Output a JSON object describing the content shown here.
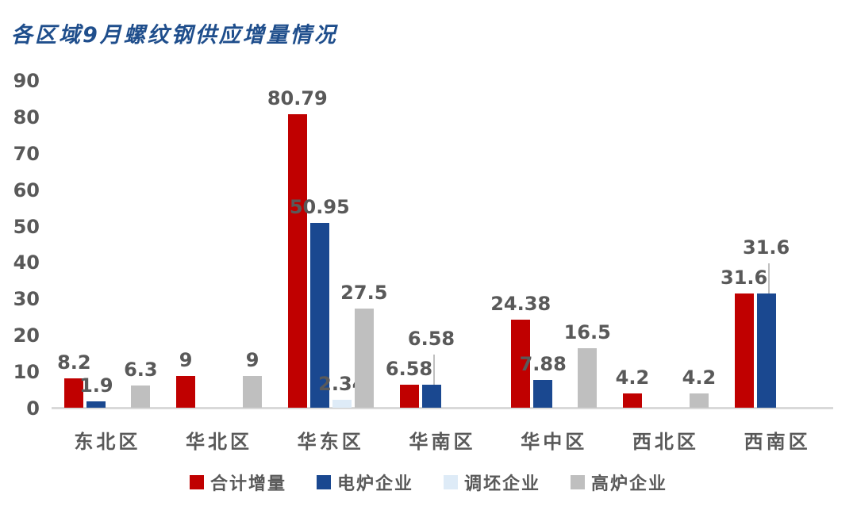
{
  "title": "各区域9月螺纹钢供应增量情况",
  "style": {
    "title_color": "#1F4E8C",
    "label_color": "#595959",
    "axis_line_color": "#D9D9D9",
    "leader_line_color": "#BFBFBF",
    "background": "#ffffff"
  },
  "chart_data": {
    "type": "bar",
    "title": "各区域9月螺纹钢供应增量情况",
    "xlabel": "",
    "ylabel": "",
    "ylim": [
      0,
      90
    ],
    "ytick_step": 10,
    "yticks": [
      0,
      10,
      20,
      30,
      40,
      50,
      60,
      70,
      80,
      90
    ],
    "grid": false,
    "legend_position": "bottom",
    "categories": [
      "东北区",
      "华北区",
      "华东区",
      "华南区",
      "华中区",
      "西北区",
      "西南区"
    ],
    "series": [
      {
        "name": "合计增量",
        "color": "#C00000",
        "values": [
          8.2,
          9,
          80.79,
          6.58,
          24.38,
          4.2,
          31.6
        ]
      },
      {
        "name": "电炉企业",
        "color": "#1A4890",
        "values": [
          1.9,
          0,
          50.95,
          6.58,
          7.88,
          0,
          31.6
        ]
      },
      {
        "name": "调坯企业",
        "color": "#DEEBF7",
        "values": [
          0,
          0,
          2.34,
          0,
          0,
          0,
          0
        ]
      },
      {
        "name": "高炉企业",
        "color": "#BFBFBF",
        "values": [
          6.3,
          9,
          27.5,
          0,
          16.5,
          4.2,
          0
        ]
      }
    ],
    "data_labels": true,
    "callouts": [
      {
        "series": 1,
        "category": 3,
        "raise": 38
      },
      {
        "series": 1,
        "category": 6,
        "raise": 38
      }
    ]
  }
}
